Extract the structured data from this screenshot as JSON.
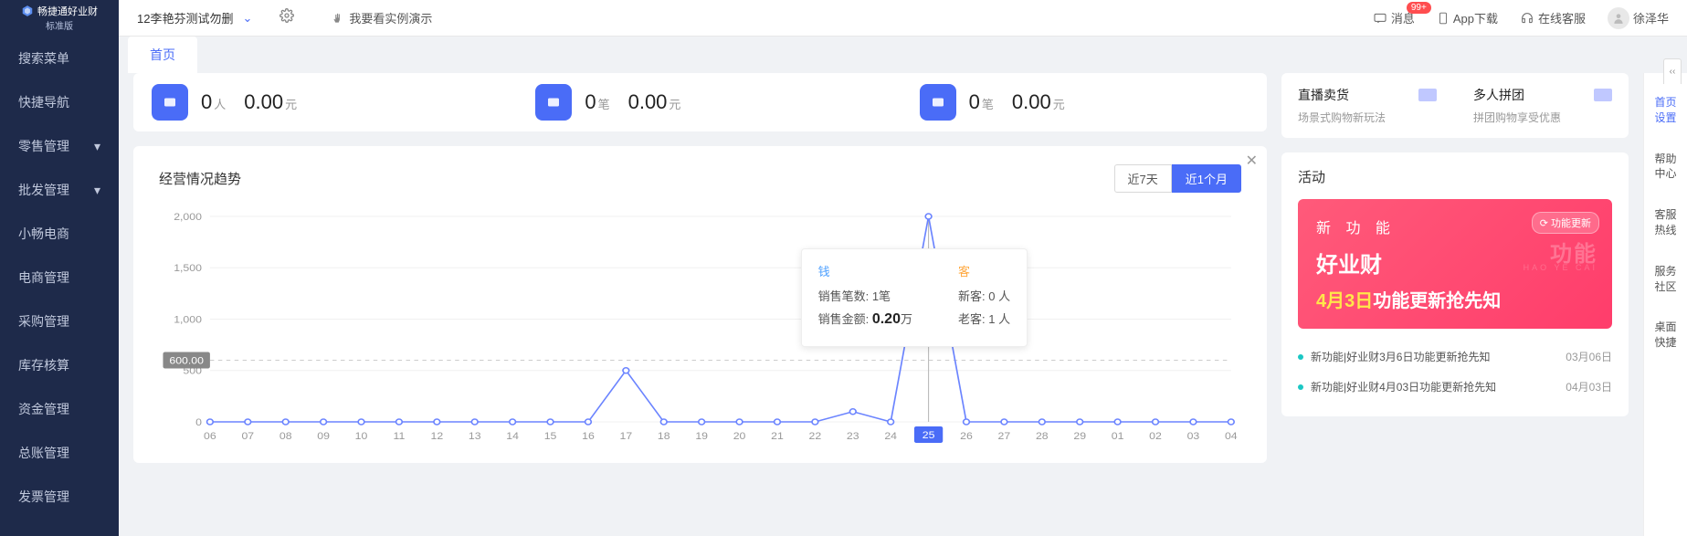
{
  "brand": {
    "name": "畅捷通好业财",
    "edition": "标准版"
  },
  "tenant": {
    "name": "12李艳芬测试勿删"
  },
  "demo_link": "我要看实例演示",
  "header_right": {
    "messages": "消息",
    "badge": "99+",
    "app_download": "App下载",
    "online_service": "在线客服",
    "username": "徐泽华"
  },
  "sidebar": [
    {
      "label": "搜索菜单",
      "caret": false
    },
    {
      "label": "快捷导航",
      "caret": false
    },
    {
      "label": "零售管理",
      "caret": true
    },
    {
      "label": "批发管理",
      "caret": true
    },
    {
      "label": "小畅电商",
      "caret": false
    },
    {
      "label": "电商管理",
      "caret": false
    },
    {
      "label": "采购管理",
      "caret": false
    },
    {
      "label": "库存核算",
      "caret": false
    },
    {
      "label": "资金管理",
      "caret": false
    },
    {
      "label": "总账管理",
      "caret": false
    },
    {
      "label": "发票管理",
      "caret": false
    }
  ],
  "tab": "首页",
  "stats": [
    {
      "icon_color": "#4a6cf7",
      "v1": "0",
      "u1": "人",
      "v2": "0.00",
      "u2": "元"
    },
    {
      "icon_color": "#4a6cf7",
      "v1": "0",
      "u1": "笔",
      "v2": "0.00",
      "u2": "元"
    },
    {
      "icon_color": "#4a6cf7",
      "v1": "0",
      "u1": "笔",
      "v2": "0.00",
      "u2": "元"
    }
  ],
  "chart": {
    "title": "经营情况趋势",
    "range_7d": "近7天",
    "range_1m": "近1个月",
    "ylim": [
      0,
      2000
    ],
    "yticks": [
      0,
      500,
      1000,
      1500,
      2000
    ],
    "ytick_labels": [
      "0",
      "500",
      "1,000",
      "1,500",
      "2,000"
    ],
    "threshold": 600,
    "threshold_label": "600.00",
    "x_labels": [
      "06",
      "07",
      "08",
      "09",
      "10",
      "11",
      "12",
      "13",
      "14",
      "15",
      "16",
      "17",
      "18",
      "19",
      "20",
      "21",
      "22",
      "23",
      "24",
      "25",
      "26",
      "27",
      "28",
      "29",
      "01",
      "02",
      "03",
      "04"
    ],
    "values": [
      0,
      0,
      0,
      0,
      0,
      0,
      0,
      0,
      0,
      0,
      0,
      500,
      0,
      0,
      0,
      0,
      0,
      100,
      0,
      2000,
      0,
      0,
      0,
      0,
      0,
      0,
      0,
      0
    ],
    "highlight_index": 19,
    "line_color": "#6b84ff",
    "grid_color": "#f0f0f0",
    "dash_color": "#cccccc",
    "tooltip": {
      "money_title": "钱",
      "cust_title": "客",
      "sales_count_label": "销售笔数:",
      "sales_count": "1笔",
      "sales_amount_label": "销售金额:",
      "sales_amount": "0.20",
      "sales_amount_unit": "万",
      "new_cust_label": "新客:",
      "new_cust": "0 人",
      "old_cust_label": "老客:",
      "old_cust": "1 人"
    }
  },
  "promos": [
    {
      "title": "直播卖货",
      "desc": "场景式购物新玩法"
    },
    {
      "title": "多人拼团",
      "desc": "拼团购物享受优惠"
    }
  ],
  "activity": {
    "title": "活动",
    "banner": {
      "tag": "新 功 能",
      "product": "好业财",
      "line_date": "4月3日",
      "line_rest": "功能更新抢先知",
      "update_btn": "功能更新",
      "watermark": "功能",
      "watermark_sub": "HAO YE CAI"
    },
    "news": [
      {
        "text": "新功能|好业财3月6日功能更新抢先知",
        "date": "03月06日"
      },
      {
        "text": "新功能|好业财4月03日功能更新抢先知",
        "date": "04月03日"
      }
    ]
  },
  "rail": [
    {
      "label": "首页设置",
      "active": true
    },
    {
      "label": "帮助中心",
      "active": false
    },
    {
      "label": "客服热线",
      "active": false
    },
    {
      "label": "服务社区",
      "active": false
    },
    {
      "label": "桌面快捷",
      "active": false
    }
  ]
}
